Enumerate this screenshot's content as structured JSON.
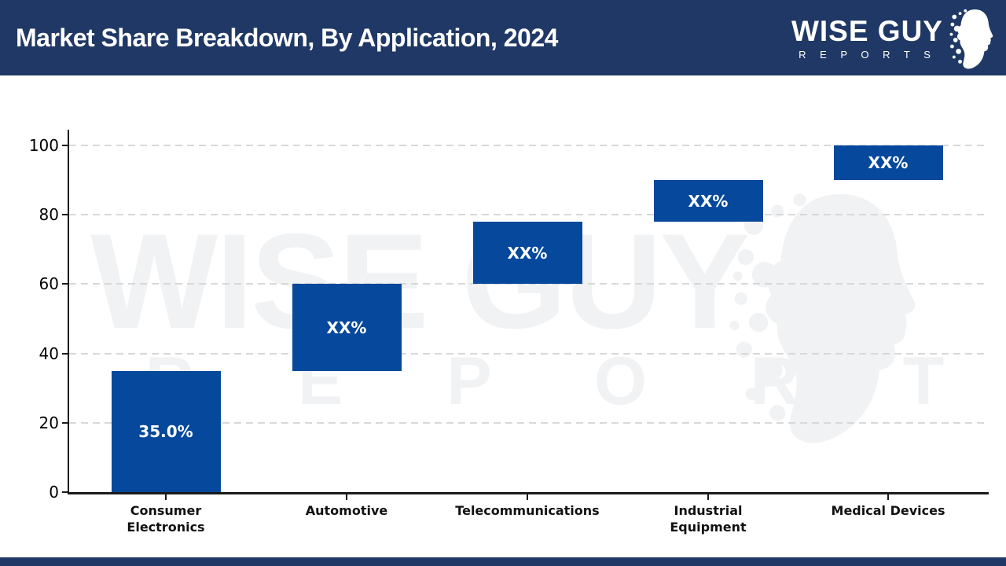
{
  "header": {
    "title": "Market Share Breakdown, By Application, 2024",
    "logo": {
      "line1": "WISE GUY",
      "line2": "R E P O R T S"
    }
  },
  "watermark": {
    "line1": "WISE GUY",
    "line2": "R E P O R T S"
  },
  "chart_data": {
    "type": "bar",
    "subtype": "waterfall",
    "title": "Market Share Breakdown, By Application, 2024",
    "xlabel": "",
    "ylabel": "",
    "categories": [
      "Consumer Electronics",
      "Automotive",
      "Telecommunications",
      "Industrial Equipment",
      "Medical Devices"
    ],
    "segments": [
      {
        "category": "Consumer Electronics",
        "tick_label": "Consumer\nElectronics",
        "start": 0,
        "end": 35,
        "label": "35.0%"
      },
      {
        "category": "Automotive",
        "tick_label": "Automotive",
        "start": 35,
        "end": 60,
        "label": "XX%"
      },
      {
        "category": "Telecommunications",
        "tick_label": "Telecommunications",
        "start": 60,
        "end": 78,
        "label": "XX%"
      },
      {
        "category": "Industrial Equipment",
        "tick_label": "Industrial\nEquipment",
        "start": 78,
        "end": 90,
        "label": "XX%"
      },
      {
        "category": "Medical Devices",
        "tick_label": "Medical Devices",
        "start": 90,
        "end": 100,
        "label": "XX%"
      }
    ],
    "values_shown_as_percent": true,
    "yticks": [
      0,
      20,
      40,
      60,
      80,
      100
    ],
    "ylim": [
      0,
      104.5
    ],
    "grid": "horizontal-dashed",
    "legend": "none"
  },
  "colors": {
    "header_bg": "#203866",
    "footer_bg": "#203866",
    "bar": "#05489c",
    "bar_label": "#ffffff",
    "grid": "#d8d8d8",
    "axis": "#1a1a1a",
    "watermark": "#f1f2f4"
  }
}
